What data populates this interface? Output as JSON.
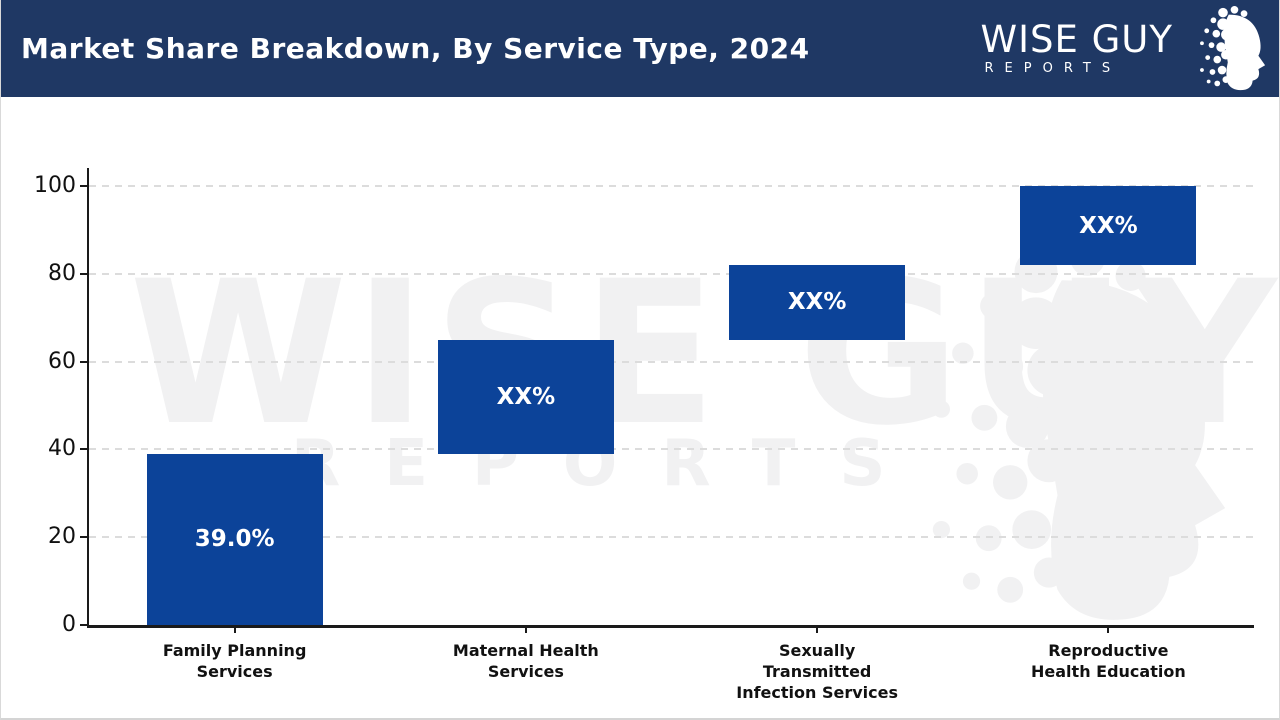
{
  "header": {
    "title": "Market Share Breakdown, By Service Type, 2024",
    "logo": {
      "line1": "WISE GUY",
      "line2": "REPORTS"
    }
  },
  "watermark": {
    "line1": "WISE GUY",
    "line2": "REPORTS"
  },
  "colors": {
    "header_bg": "#1f3864",
    "bar": "#0c4399",
    "gridline": "#dcdcdc",
    "axis": "#1a1a1a",
    "watermark": "#f1f1f2",
    "bar_label": "#ffffff",
    "title_text": "#ffffff"
  },
  "chart_data": {
    "type": "bar",
    "subtype": "waterfall",
    "title": "Market Share Breakdown, By Service Type, 2024",
    "xlabel": "",
    "ylabel": "",
    "ylim": [
      0,
      100
    ],
    "yticks": [
      0,
      20,
      40,
      60,
      80,
      100
    ],
    "grid": "horizontal dashed, drawn behind bars",
    "legend": "none",
    "categories": [
      "Family Planning Services",
      "Maternal Health Services",
      "Sexually Transmitted Infection Services",
      "Reproductive Health Education"
    ],
    "segments": [
      {
        "category": "Family Planning Services",
        "label_lines": [
          "Family Planning",
          "Services"
        ],
        "start": 0,
        "end": 39,
        "value": 39.0,
        "display": "39.0%"
      },
      {
        "category": "Maternal Health Services",
        "label_lines": [
          "Maternal Health",
          "Services"
        ],
        "start": 39,
        "end": 65,
        "value": 26,
        "display": "XX%"
      },
      {
        "category": "Sexually Transmitted Infection Services",
        "label_lines": [
          "Sexually",
          "Transmitted",
          "Infection Services"
        ],
        "start": 65,
        "end": 82,
        "value": 17,
        "display": "XX%"
      },
      {
        "category": "Reproductive Health Education",
        "label_lines": [
          "Reproductive",
          "Health Education"
        ],
        "start": 82,
        "end": 100,
        "value": 18,
        "display": "XX%"
      }
    ]
  }
}
